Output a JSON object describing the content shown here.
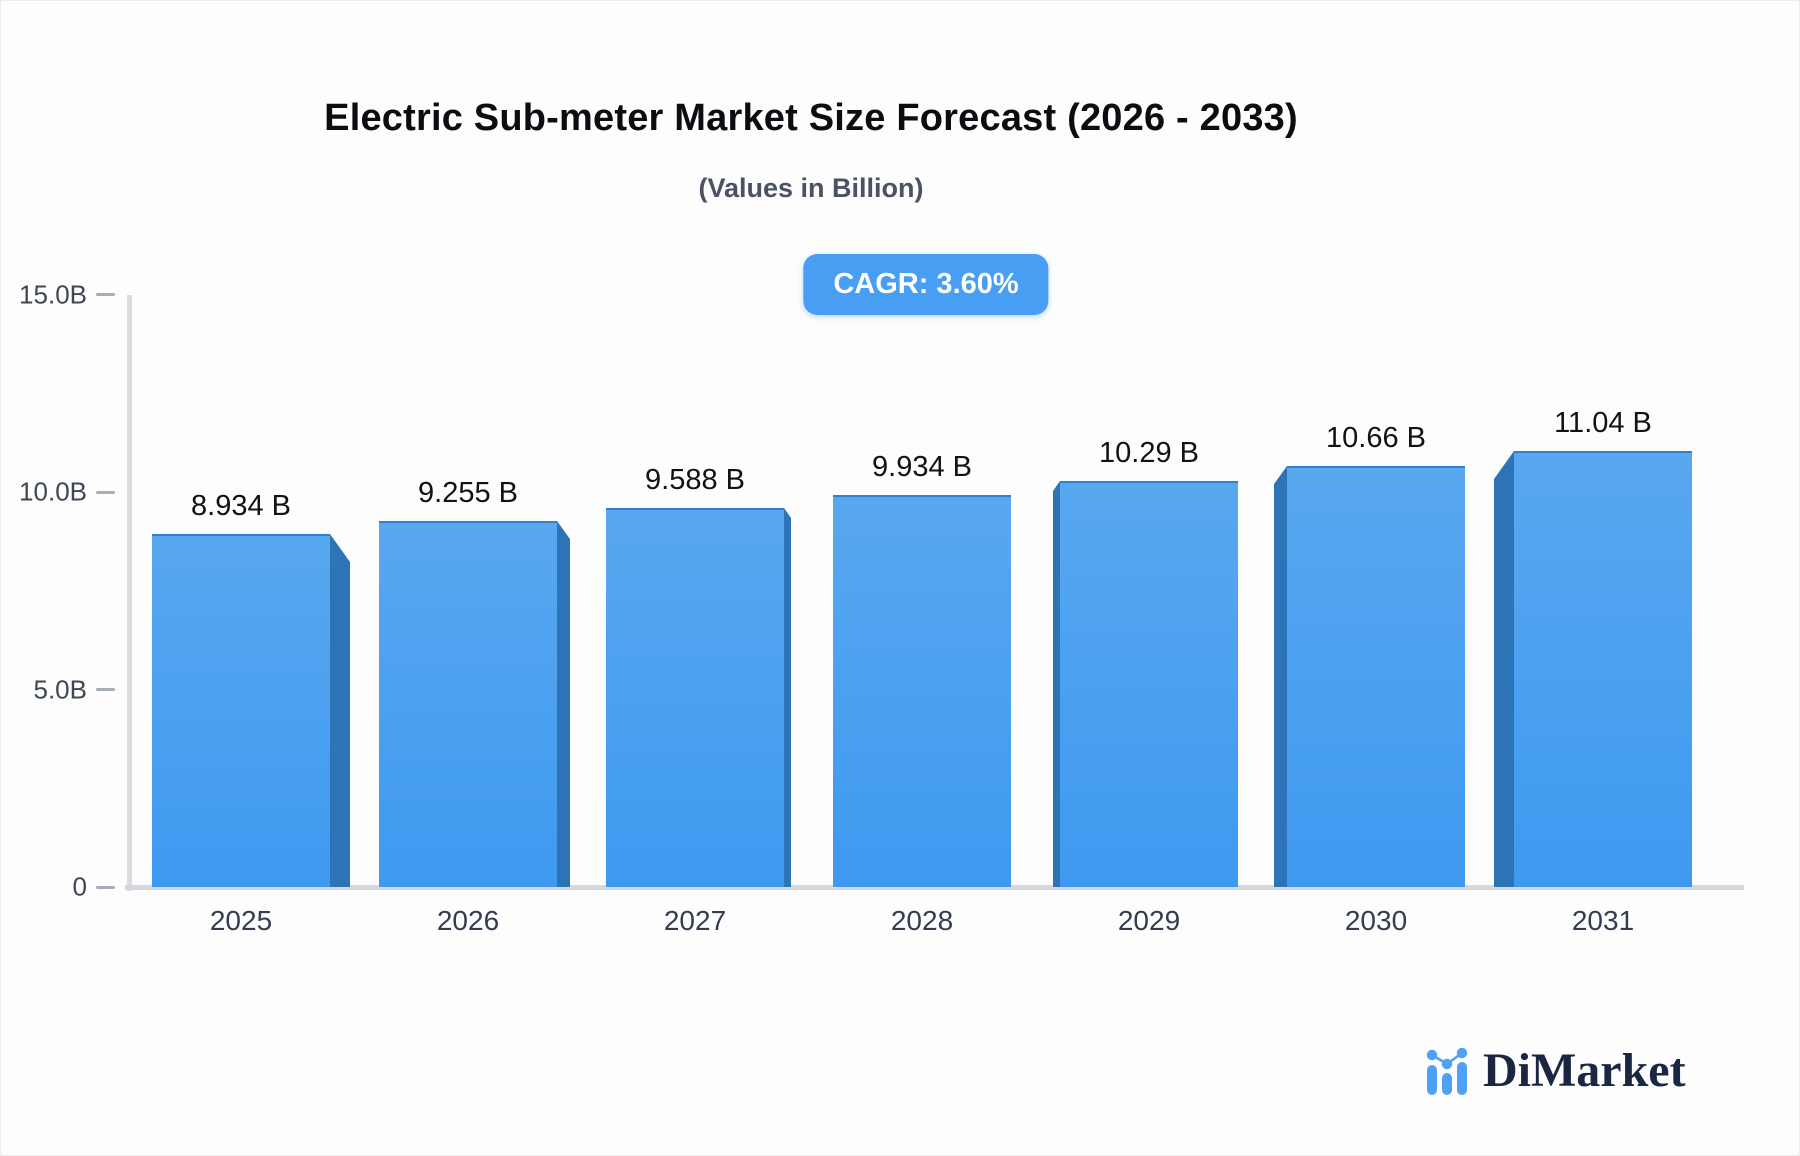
{
  "header": {
    "title": "Electric Sub-meter Market Size Forecast (2026 - 2033)",
    "subtitle": "(Values in Billion)",
    "cagr_badge": "CAGR: 3.60%"
  },
  "chart_data": {
    "type": "bar",
    "title": "Electric Sub-meter Market Size Forecast (2026 - 2033)",
    "subtitle": "(Values in Billion)",
    "xlabel": "",
    "ylabel": "",
    "unit": "Billion USD",
    "categories": [
      "2025",
      "2026",
      "2027",
      "2028",
      "2029",
      "2030",
      "2031"
    ],
    "values": [
      8.934,
      9.255,
      9.588,
      9.934,
      10.29,
      10.66,
      11.04
    ],
    "value_labels": [
      "8.934 B",
      "9.255 B",
      "9.588 B",
      "9.934 B",
      "10.29 B",
      "10.66 B",
      "11.04 B"
    ],
    "ylim": [
      0,
      15
    ],
    "yticks": [
      {
        "value": 0,
        "label": "0"
      },
      {
        "value": 5,
        "label": "5.0B"
      },
      {
        "value": 10,
        "label": "10.0B"
      },
      {
        "value": 15,
        "label": "15.0B"
      }
    ],
    "grid": false,
    "legend": "none",
    "style": "3d-bars, perspective side facing outward from center",
    "colors": {
      "bar_top": "#58a8ef",
      "bar_bottom": "#3f99f0",
      "bar_side": "#2d74b7",
      "badge_bg": "#479ef2",
      "badge_text": "#ffffff",
      "axis": "#d8dbe0",
      "tick_text": "#3f4654",
      "label_text": "#101216"
    }
  },
  "footer": {
    "brand": "DiMarket",
    "logo": "mini-bar-chart-with-dots-icon",
    "brand_color": "#1b2742",
    "logo_blue": "#4da2f7"
  }
}
